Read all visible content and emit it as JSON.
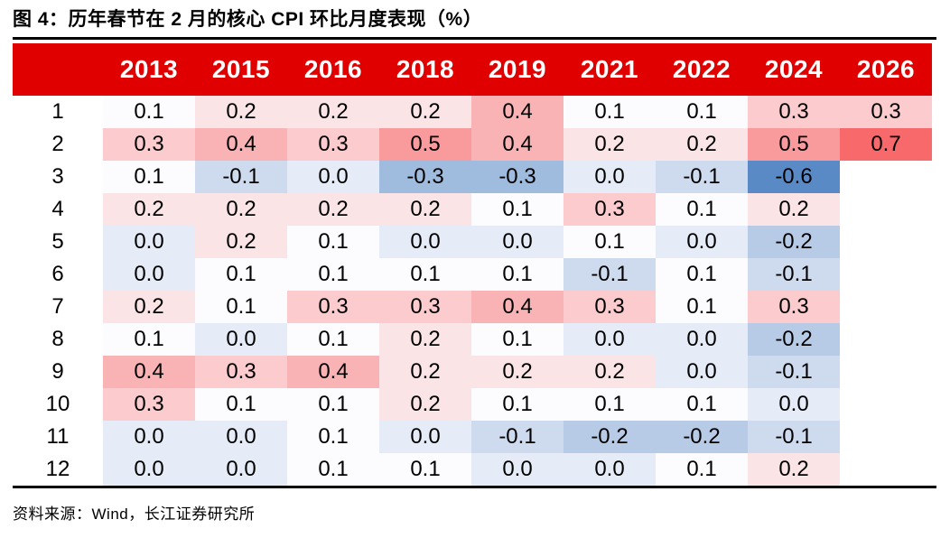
{
  "title": "图 4：历年春节在 2 月的核心 CPI 环比月度表现（%）",
  "source": "资料来源：Wind，长江证券研究所",
  "colors": {
    "header_bg": "#E00000",
    "header_text": "#FFFFFF",
    "rule": "#000000",
    "cell_text": "#000000"
  },
  "chart_data": {
    "type": "heatmap",
    "title": "历年春节在 2 月的核心 CPI 环比月度表现（%）",
    "columns": [
      "2013",
      "2015",
      "2016",
      "2018",
      "2019",
      "2021",
      "2022",
      "2024",
      "2026"
    ],
    "rows": [
      "1",
      "2",
      "3",
      "4",
      "5",
      "6",
      "7",
      "8",
      "9",
      "10",
      "11",
      "12"
    ],
    "values": [
      [
        "0.1",
        "0.2",
        "0.2",
        "0.2",
        "0.4",
        "0.1",
        "0.1",
        "0.3",
        "0.3"
      ],
      [
        "0.3",
        "0.4",
        "0.3",
        "0.5",
        "0.4",
        "0.2",
        "0.2",
        "0.5",
        "0.7"
      ],
      [
        "0.1",
        "-0.1",
        "0.0",
        "-0.3",
        "-0.3",
        "0.0",
        "-0.1",
        "-0.6",
        null
      ],
      [
        "0.2",
        "0.2",
        "0.2",
        "0.2",
        "0.1",
        "0.3",
        "0.1",
        "0.2",
        null
      ],
      [
        "0.0",
        "0.2",
        "0.1",
        "0.0",
        "0.0",
        "0.1",
        "0.0",
        "-0.2",
        null
      ],
      [
        "0.0",
        "0.1",
        "0.1",
        "0.1",
        "0.1",
        "-0.1",
        "0.1",
        "-0.1",
        null
      ],
      [
        "0.2",
        "0.1",
        "0.3",
        "0.3",
        "0.4",
        "0.3",
        "0.1",
        "0.3",
        null
      ],
      [
        "0.1",
        "0.0",
        "0.1",
        "0.2",
        "0.1",
        "0.0",
        "0.0",
        "-0.2",
        null
      ],
      [
        "0.4",
        "0.3",
        "0.4",
        "0.2",
        "0.2",
        "0.2",
        "0.0",
        "-0.1",
        null
      ],
      [
        "0.3",
        "0.1",
        "0.1",
        "0.2",
        "0.1",
        "0.1",
        "0.1",
        "0.0",
        null
      ],
      [
        "0.0",
        "0.0",
        "0.1",
        "0.0",
        "-0.1",
        "-0.2",
        "-0.2",
        "-0.1",
        null
      ],
      [
        "0.0",
        "0.0",
        "0.1",
        "0.1",
        "0.0",
        "0.0",
        "0.1",
        "0.2",
        null
      ]
    ],
    "color_scale": {
      "min": -0.6,
      "mid": 0.1,
      "max": 0.7,
      "min_color": "#5A8AC6",
      "mid_color": "#FCFCFF",
      "max_color": "#F8696B",
      "empty_color": "#FFFFFF"
    },
    "legend_position": "none",
    "grid": false
  }
}
